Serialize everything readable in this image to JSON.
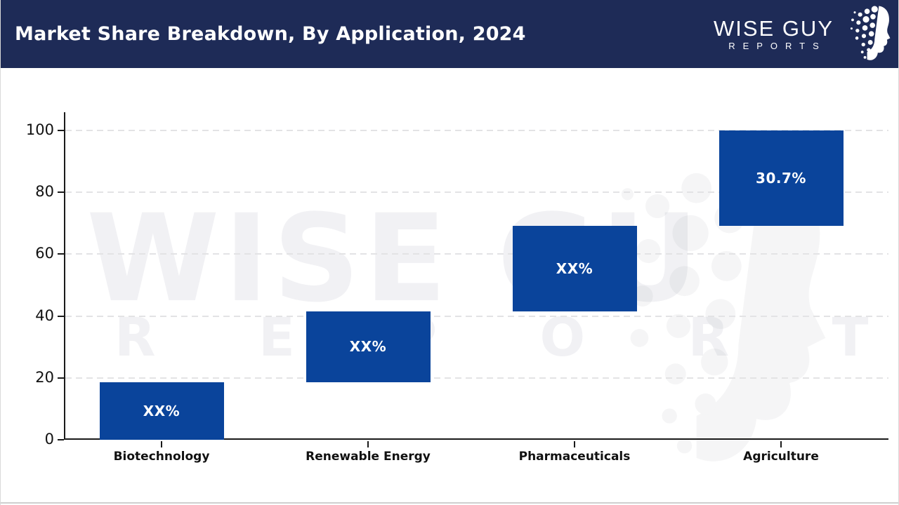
{
  "header": {
    "title": "Market Share Breakdown, By Application, 2024",
    "logo": {
      "line1": "WISE GUY",
      "line2": "REPORTS"
    }
  },
  "watermark": {
    "line1": "WISE GU",
    "line2": "R E P O R T S"
  },
  "chart_data": {
    "type": "bar",
    "subtype": "waterfall",
    "title": "Market Share Breakdown, By Application, 2024",
    "categories": [
      "Biotechnology",
      "Renewable Energy",
      "Pharmaceuticals",
      "Agriculture"
    ],
    "segments": [
      {
        "category": "Biotechnology",
        "start": 0,
        "end": 18.5,
        "label": "XX%"
      },
      {
        "category": "Renewable Energy",
        "start": 18.5,
        "end": 41.6,
        "label": "XX%"
      },
      {
        "category": "Pharmaceuticals",
        "start": 41.6,
        "end": 69.2,
        "label": "XX%"
      },
      {
        "category": "Agriculture",
        "start": 69.2,
        "end": 99.9,
        "label": "30.7%"
      }
    ],
    "yticks": [
      0,
      20,
      40,
      60,
      80,
      100
    ],
    "ylim": [
      0,
      105
    ],
    "xlabel": "",
    "ylabel": "",
    "grid": "dashed-horizontal",
    "legend": "none",
    "bar_color": "#0a449b",
    "bar_label_color": "#ffffff",
    "axis_color": "#1a1a1a",
    "header_color": "#1e2b57",
    "watermark_color": "#f1f1f4"
  }
}
